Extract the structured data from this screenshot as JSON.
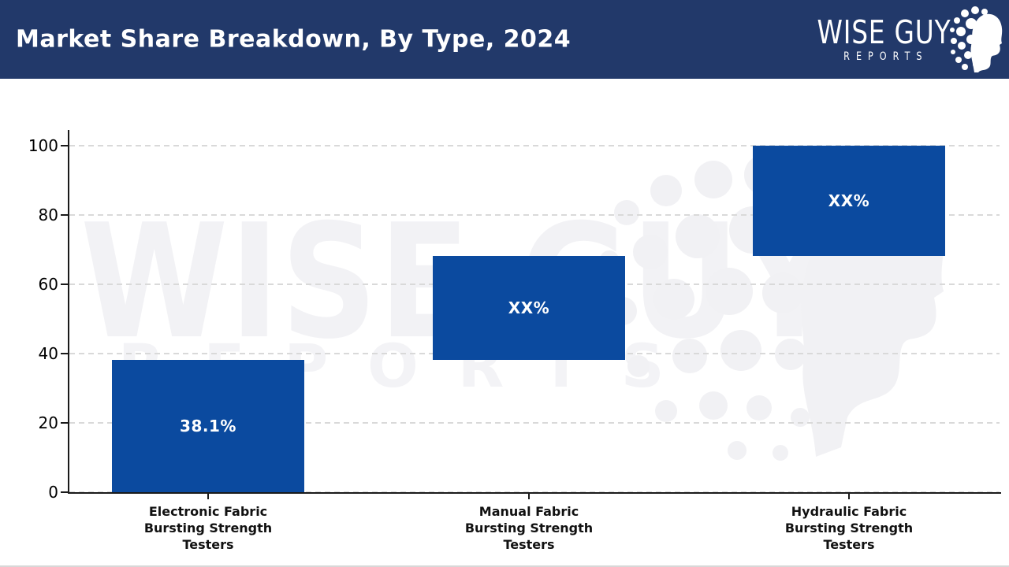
{
  "header": {
    "title": "Market Share Breakdown, By Type, 2024",
    "bg_color": "#22396a",
    "logo_line1": "WISE GUY",
    "logo_line2": "REPORTS"
  },
  "watermark": {
    "line1": "WISE GUY",
    "line2": "REPORTS"
  },
  "chart_data": {
    "type": "bar",
    "variant": "floating-cumulative-segments",
    "title": "Market Share Breakdown, By Type, 2024",
    "categories": [
      "Electronic Fabric\nBursting Strength\nTesters",
      "Manual Fabric\nBursting Strength\nTesters",
      "Hydraulic Fabric\nBursting Strength\nTesters"
    ],
    "segments": [
      {
        "from": 0,
        "to": 38.1,
        "label": "38.1%"
      },
      {
        "from": 38.1,
        "to": 68.2,
        "label": "XX%"
      },
      {
        "from": 68.2,
        "to": 100,
        "label": "XX%"
      }
    ],
    "yticks": [
      0,
      20,
      40,
      60,
      80,
      100
    ],
    "ylim": [
      0,
      104.5
    ],
    "grid": "dashed-horizontal",
    "legend": "none",
    "bar_color": "#0b4a9f",
    "label_color": "#ffffff",
    "xlabel": "",
    "ylabel": ""
  }
}
